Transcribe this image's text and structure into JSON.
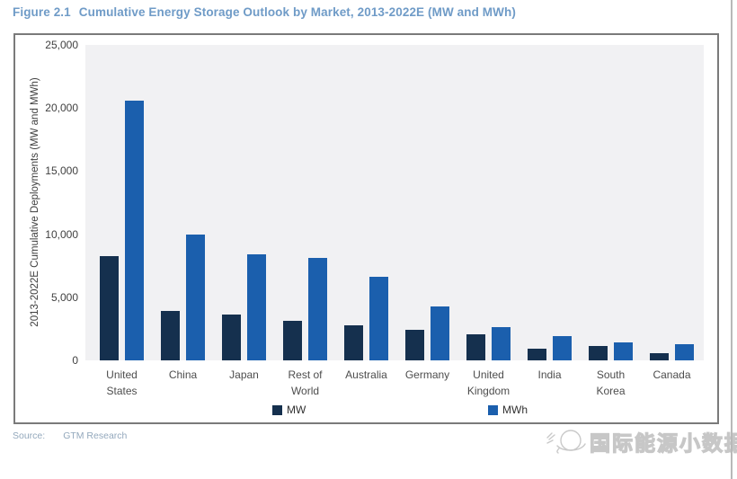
{
  "title": {
    "figure_label": "Figure 2.1",
    "text": "Cumulative Energy Storage Outlook by Market, 2013-2022E (MW and MWh)"
  },
  "chart_data": {
    "type": "bar",
    "title": "Figure 2.1 Cumulative Energy Storage Outlook by Market, 2013-2022E (MW and MWh)",
    "ylabel": "2013-2022E Cumulative Deployments (MW and MWh)",
    "xlabel": "",
    "ylim": [
      0,
      25000
    ],
    "ytick_labels": [
      "0",
      "5,000",
      "10,000",
      "15,000",
      "20,000",
      "25,000"
    ],
    "grid": false,
    "legend_position": "bottom",
    "categories": [
      "United States",
      "China",
      "Japan",
      "Rest of World",
      "Australia",
      "Germany",
      "United Kingdom",
      "India",
      "South Korea",
      "Canada"
    ],
    "series": [
      {
        "name": "MW",
        "color": "#15304e",
        "values": [
          8250,
          3950,
          3650,
          3150,
          2800,
          2400,
          2100,
          950,
          1150,
          550
        ]
      },
      {
        "name": "MWh",
        "color": "#1b5fad",
        "values": [
          20550,
          9950,
          8400,
          8100,
          6600,
          4300,
          2600,
          1950,
          1450,
          1300
        ]
      }
    ]
  },
  "source": {
    "label": "Source:",
    "value": "GTM Research"
  },
  "watermark": {
    "text": "国际能源小数据",
    "logo": "globe-sketch-icon"
  },
  "colors": {
    "title_text": "#6f9bc7",
    "mw_bar": "#15304e",
    "mwh_bar": "#1b5fad",
    "plot_background": "#f1f1f3",
    "axis_text": "#404040",
    "category_text": "#4d4d4d",
    "source_text": "#93a8bc",
    "frame_border": "#7a7a7a"
  }
}
